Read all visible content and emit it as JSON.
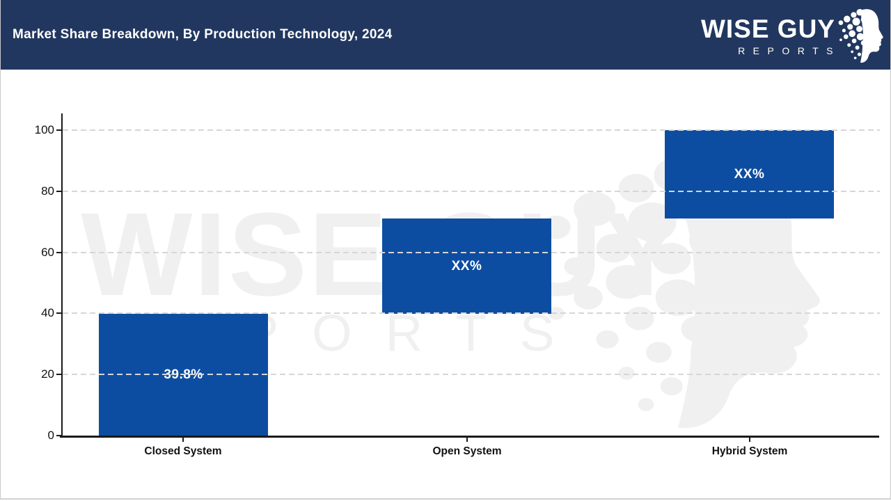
{
  "header": {
    "title": "Market Share Breakdown, By Production Technology, 2024",
    "logo": {
      "line1": "WISE GUY",
      "line2": "REPORTS"
    }
  },
  "watermark": {
    "line1": "WISE GUY",
    "line2": "REPORTS"
  },
  "chart_data": {
    "type": "bar",
    "variant": "floating-segment waterfall",
    "title": "Market Share Breakdown, By Production Technology, 2024",
    "categories": [
      "Closed System",
      "Open System",
      "Hybrid System"
    ],
    "segments": [
      {
        "category": "Closed System",
        "start": 0,
        "end": 39.8,
        "label": "39.8%"
      },
      {
        "category": "Open System",
        "start": 39.8,
        "end": 71,
        "label": "XX%"
      },
      {
        "category": "Hybrid System",
        "start": 71,
        "end": 100,
        "label": "XX%"
      }
    ],
    "xlabel": "",
    "ylabel": "",
    "ylim": [
      0,
      100
    ],
    "yticks": [
      0,
      20,
      40,
      60,
      80,
      100
    ],
    "grid": "horizontal-dashed-over-bars",
    "legend": "none",
    "bar_color": "#0d4da1",
    "bar_label_color": "#ffffff"
  },
  "colors": {
    "header_bg": "#21375f",
    "bar": "#0d4da1",
    "gridline": "#d6d6d6",
    "axis": "#1a1a1a",
    "watermark": "#f0f0f1",
    "background": "#ffffff"
  }
}
